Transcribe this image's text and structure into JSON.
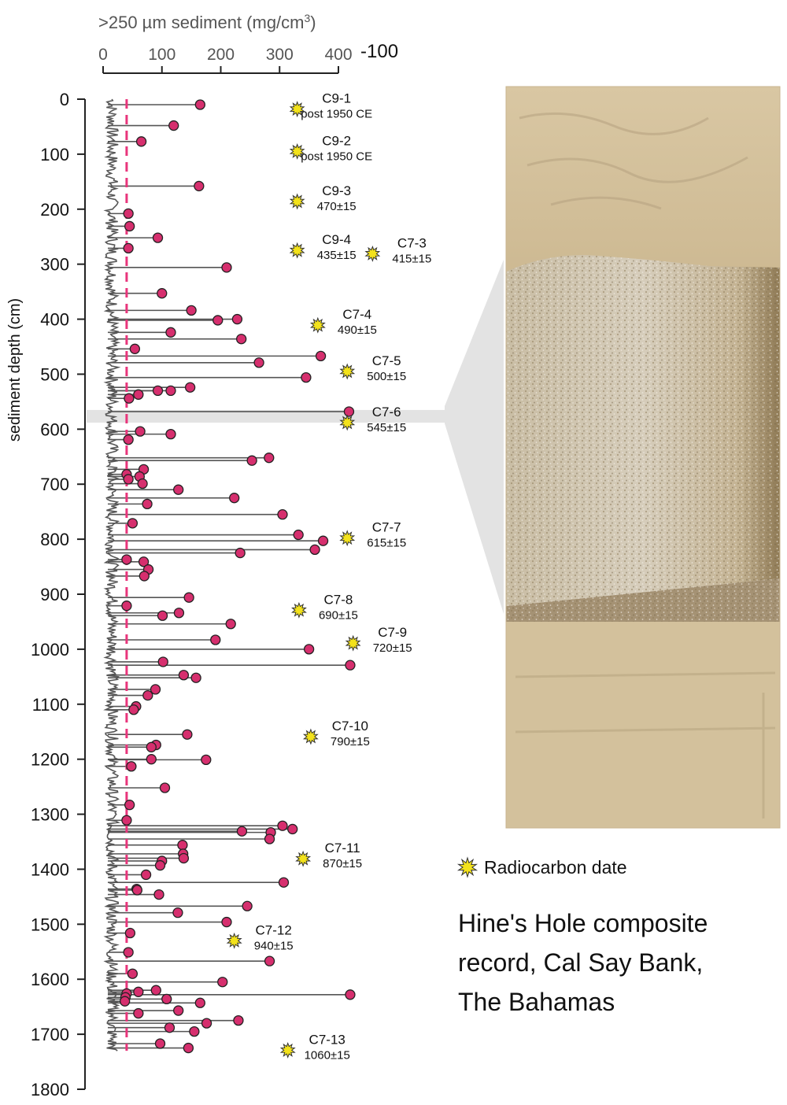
{
  "chart_data": {
    "type": "line",
    "xlabel_prefix": ">250 µm sediment (mg/cm",
    "xlabel_sup": "3",
    "xlabel_suffix": ")",
    "xlim": [
      0,
      400
    ],
    "xticks": [
      0,
      100,
      200,
      300,
      400
    ],
    "x_extra_label": "-100",
    "ylabel": "sediment depth (cm)",
    "ylim": [
      0,
      1800
    ],
    "yticks": [
      0,
      100,
      200,
      300,
      400,
      500,
      600,
      700,
      800,
      900,
      1000,
      1100,
      1200,
      1300,
      1400,
      1500,
      1600,
      1700,
      1800
    ],
    "threshold_x": 40,
    "colors": {
      "line": "#555555",
      "peak_fill": "#d62f6e",
      "threshold": "#e8357b",
      "star": "#f3e21b",
      "band": "#e3e3e3"
    },
    "photo_depth_band": [
      565,
      588
    ],
    "peaks": [
      {
        "x": 165,
        "y": 10
      },
      {
        "x": 120,
        "y": 48
      },
      {
        "x": 65,
        "y": 77
      },
      {
        "x": 163,
        "y": 158
      },
      {
        "x": 43,
        "y": 208
      },
      {
        "x": 45,
        "y": 231
      },
      {
        "x": 93,
        "y": 252
      },
      {
        "x": 43,
        "y": 271
      },
      {
        "x": 210,
        "y": 306
      },
      {
        "x": 100,
        "y": 353
      },
      {
        "x": 150,
        "y": 384
      },
      {
        "x": 195,
        "y": 402
      },
      {
        "x": 228,
        "y": 400
      },
      {
        "x": 115,
        "y": 424
      },
      {
        "x": 235,
        "y": 436
      },
      {
        "x": 54,
        "y": 454
      },
      {
        "x": 370,
        "y": 467
      },
      {
        "x": 265,
        "y": 479
      },
      {
        "x": 345,
        "y": 506
      },
      {
        "x": 148,
        "y": 524
      },
      {
        "x": 93,
        "y": 530
      },
      {
        "x": 115,
        "y": 530
      },
      {
        "x": 60,
        "y": 537
      },
      {
        "x": 44,
        "y": 544
      },
      {
        "x": 418,
        "y": 568
      },
      {
        "x": 63,
        "y": 604
      },
      {
        "x": 115,
        "y": 609
      },
      {
        "x": 43,
        "y": 619
      },
      {
        "x": 282,
        "y": 652
      },
      {
        "x": 253,
        "y": 657
      },
      {
        "x": 69,
        "y": 673
      },
      {
        "x": 62,
        "y": 686
      },
      {
        "x": 40,
        "y": 682
      },
      {
        "x": 43,
        "y": 691
      },
      {
        "x": 67,
        "y": 699
      },
      {
        "x": 128,
        "y": 710
      },
      {
        "x": 223,
        "y": 725
      },
      {
        "x": 75,
        "y": 736
      },
      {
        "x": 305,
        "y": 755
      },
      {
        "x": 50,
        "y": 771
      },
      {
        "x": 332,
        "y": 792
      },
      {
        "x": 374,
        "y": 803
      },
      {
        "x": 360,
        "y": 819
      },
      {
        "x": 233,
        "y": 825
      },
      {
        "x": 40,
        "y": 837
      },
      {
        "x": 69,
        "y": 841
      },
      {
        "x": 77,
        "y": 855
      },
      {
        "x": 70,
        "y": 867
      },
      {
        "x": 146,
        "y": 906
      },
      {
        "x": 40,
        "y": 921
      },
      {
        "x": 129,
        "y": 934
      },
      {
        "x": 101,
        "y": 939
      },
      {
        "x": 217,
        "y": 954
      },
      {
        "x": 191,
        "y": 983
      },
      {
        "x": 350,
        "y": 1000
      },
      {
        "x": 420,
        "y": 1029
      },
      {
        "x": 102,
        "y": 1023
      },
      {
        "x": 137,
        "y": 1047
      },
      {
        "x": 158,
        "y": 1052
      },
      {
        "x": 89,
        "y": 1073
      },
      {
        "x": 76,
        "y": 1084
      },
      {
        "x": 56,
        "y": 1104
      },
      {
        "x": 52,
        "y": 1110
      },
      {
        "x": 143,
        "y": 1155
      },
      {
        "x": 90,
        "y": 1174
      },
      {
        "x": 82,
        "y": 1178
      },
      {
        "x": 175,
        "y": 1201
      },
      {
        "x": 82,
        "y": 1200
      },
      {
        "x": 48,
        "y": 1213
      },
      {
        "x": 105,
        "y": 1252
      },
      {
        "x": 45,
        "y": 1283
      },
      {
        "x": 40,
        "y": 1311
      },
      {
        "x": 305,
        "y": 1321
      },
      {
        "x": 322,
        "y": 1327
      },
      {
        "x": 285,
        "y": 1333
      },
      {
        "x": 236,
        "y": 1331
      },
      {
        "x": 283,
        "y": 1345
      },
      {
        "x": 135,
        "y": 1356
      },
      {
        "x": 136,
        "y": 1372
      },
      {
        "x": 137,
        "y": 1380
      },
      {
        "x": 100,
        "y": 1385
      },
      {
        "x": 97,
        "y": 1393
      },
      {
        "x": 73,
        "y": 1410
      },
      {
        "x": 307,
        "y": 1424
      },
      {
        "x": 57,
        "y": 1436
      },
      {
        "x": 58,
        "y": 1438
      },
      {
        "x": 95,
        "y": 1446
      },
      {
        "x": 245,
        "y": 1467
      },
      {
        "x": 127,
        "y": 1479
      },
      {
        "x": 210,
        "y": 1496
      },
      {
        "x": 46,
        "y": 1516
      },
      {
        "x": 43,
        "y": 1551
      },
      {
        "x": 283,
        "y": 1567
      },
      {
        "x": 50,
        "y": 1590
      },
      {
        "x": 203,
        "y": 1605
      },
      {
        "x": 420,
        "y": 1628
      },
      {
        "x": 90,
        "y": 1620
      },
      {
        "x": 60,
        "y": 1623
      },
      {
        "x": 40,
        "y": 1626
      },
      {
        "x": 38,
        "y": 1633
      },
      {
        "x": 37,
        "y": 1640
      },
      {
        "x": 108,
        "y": 1636
      },
      {
        "x": 165,
        "y": 1643
      },
      {
        "x": 128,
        "y": 1657
      },
      {
        "x": 60,
        "y": 1662
      },
      {
        "x": 230,
        "y": 1675
      },
      {
        "x": 176,
        "y": 1680
      },
      {
        "x": 113,
        "y": 1688
      },
      {
        "x": 155,
        "y": 1695
      },
      {
        "x": 97,
        "y": 1717
      },
      {
        "x": 145,
        "y": 1725
      }
    ],
    "radiocarbon_dates": [
      {
        "id": "C9-1",
        "age": "post 1950 CE",
        "x": 330,
        "y": 18
      },
      {
        "id": "C9-2",
        "age": "post 1950 CE",
        "x": 330,
        "y": 95
      },
      {
        "id": "C9-3",
        "age": "470±15",
        "x": 330,
        "y": 186
      },
      {
        "id": "C9-4",
        "age": "435±15",
        "x": 330,
        "y": 275
      },
      {
        "id": "C7-3",
        "age": "415±15",
        "x": 458,
        "y": 281
      },
      {
        "id": "C7-4",
        "age": "490±15",
        "x": 365,
        "y": 411
      },
      {
        "id": "C7-5",
        "age": "500±15",
        "x": 415,
        "y": 495
      },
      {
        "id": "C7-6",
        "age": "545±15",
        "x": 415,
        "y": 588
      },
      {
        "id": "C7-7",
        "age": "615±15",
        "x": 415,
        "y": 798
      },
      {
        "id": "C7-8",
        "age": "690±15",
        "x": 333,
        "y": 929
      },
      {
        "id": "C7-9",
        "age": "720±15",
        "x": 425,
        "y": 989
      },
      {
        "id": "C7-10",
        "age": "790±15",
        "x": 353,
        "y": 1159
      },
      {
        "id": "C7-11",
        "age": "870±15",
        "x": 340,
        "y": 1381
      },
      {
        "id": "C7-12",
        "age": "940±15",
        "x": 223,
        "y": 1530
      },
      {
        "id": "C7-13",
        "age": "1060±15",
        "x": 314,
        "y": 1729
      }
    ]
  },
  "legend": {
    "radiocarbon_label": "Radiocarbon date"
  },
  "caption": {
    "line1": "Hine's Hole composite",
    "line2": "record, Cal Say Bank,",
    "line3": "The Bahamas"
  }
}
